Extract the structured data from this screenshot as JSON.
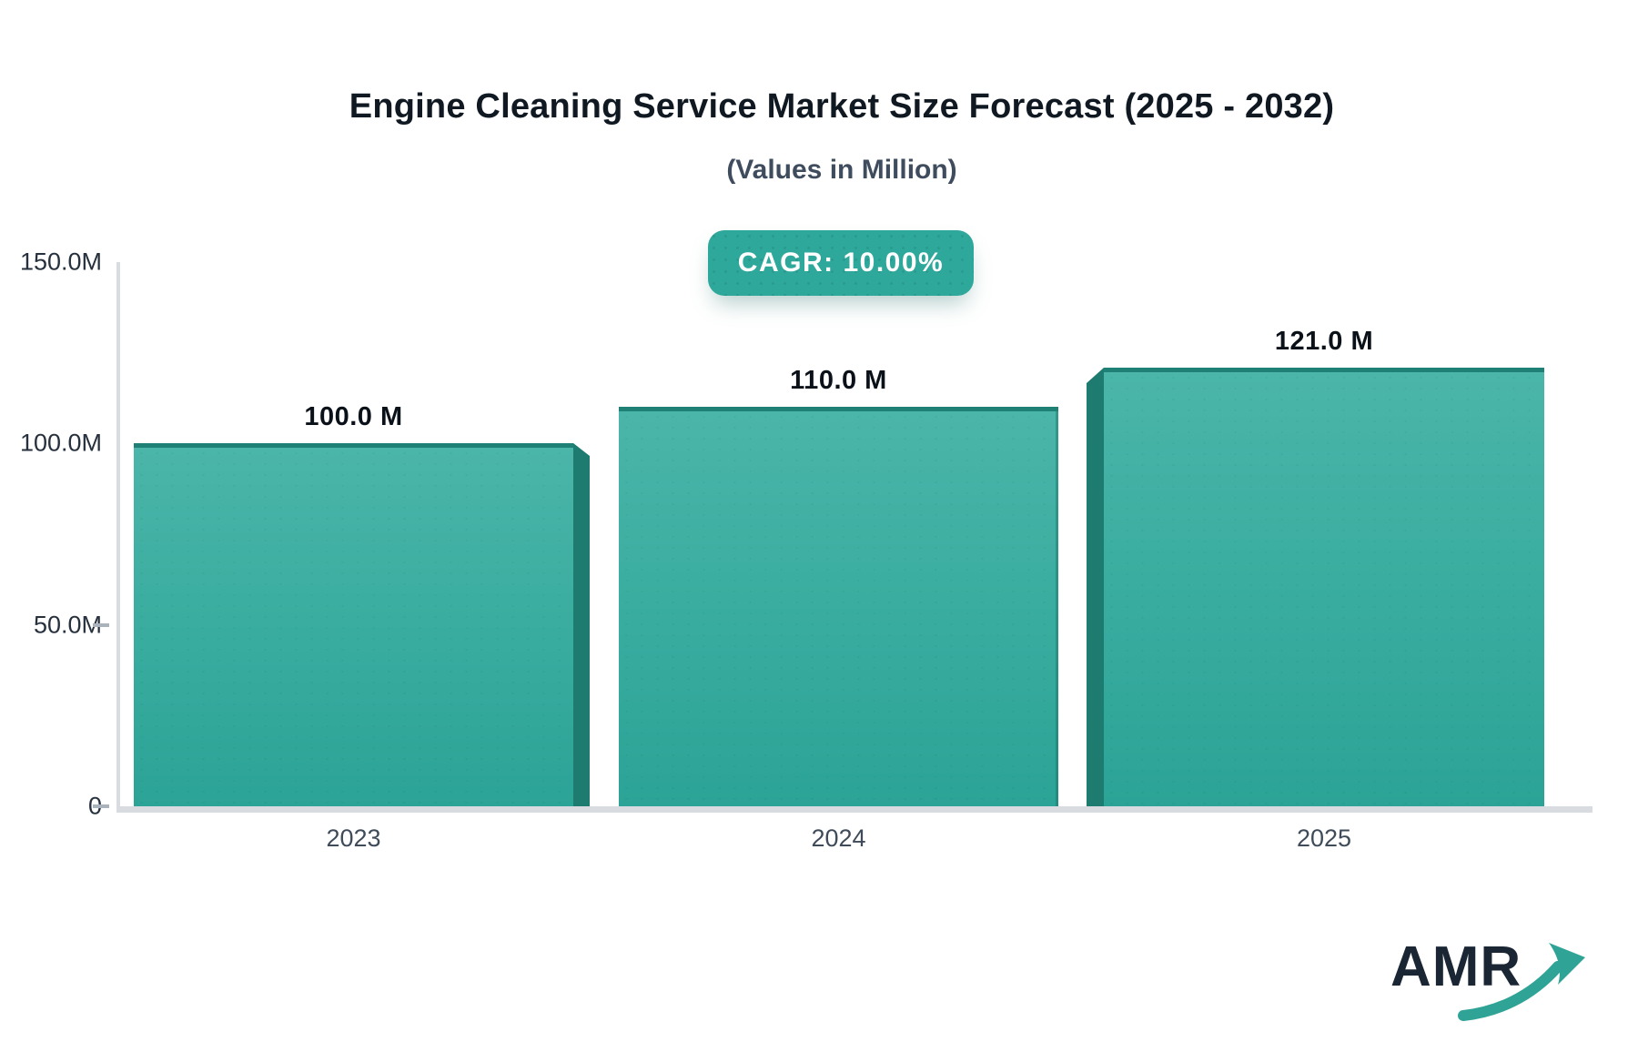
{
  "title": "Engine Cleaning Service Market Size Forecast (2025 - 2032)",
  "subtitle": "(Values in Million)",
  "badge": {
    "label": "CAGR: 10.00%"
  },
  "chart_data": {
    "type": "bar",
    "title": "Engine Cleaning Service Market Size Forecast (2025 - 2032)",
    "subtitle": "(Values in Million)",
    "unit": "Million",
    "categories": [
      "2023",
      "2024",
      "2025"
    ],
    "values": [
      100.0,
      110.0,
      121.0
    ],
    "bar_labels": [
      "100.0 M",
      "110.0 M",
      "121.0 M"
    ],
    "cagr_percent": 10.0,
    "xlabel": "",
    "ylabel": "",
    "ylim": [
      0,
      150
    ],
    "yticks": [
      {
        "label": "150.0M",
        "value": 150,
        "dash": false
      },
      {
        "label": "100.0M",
        "value": 100,
        "dash": false
      },
      {
        "label": "50.0M",
        "value": 50,
        "dash": true
      },
      {
        "label": "0",
        "value": 0,
        "dash": true
      }
    ],
    "grid": false,
    "legend": "none",
    "bar_color_top": "#4bb5a9",
    "bar_color_bottom": "#2ba396",
    "bar_side_color": "#1e7b70",
    "axis_color": "#d8dce1"
  },
  "colors": {
    "accent_teal": "#2ea89b",
    "title_text": "#101922",
    "subtitle_text": "#3e4c5e",
    "logo_navy": "#1a2634"
  },
  "logo": {
    "text": "AMR",
    "arrow_icon": "growth-arrow-icon"
  }
}
